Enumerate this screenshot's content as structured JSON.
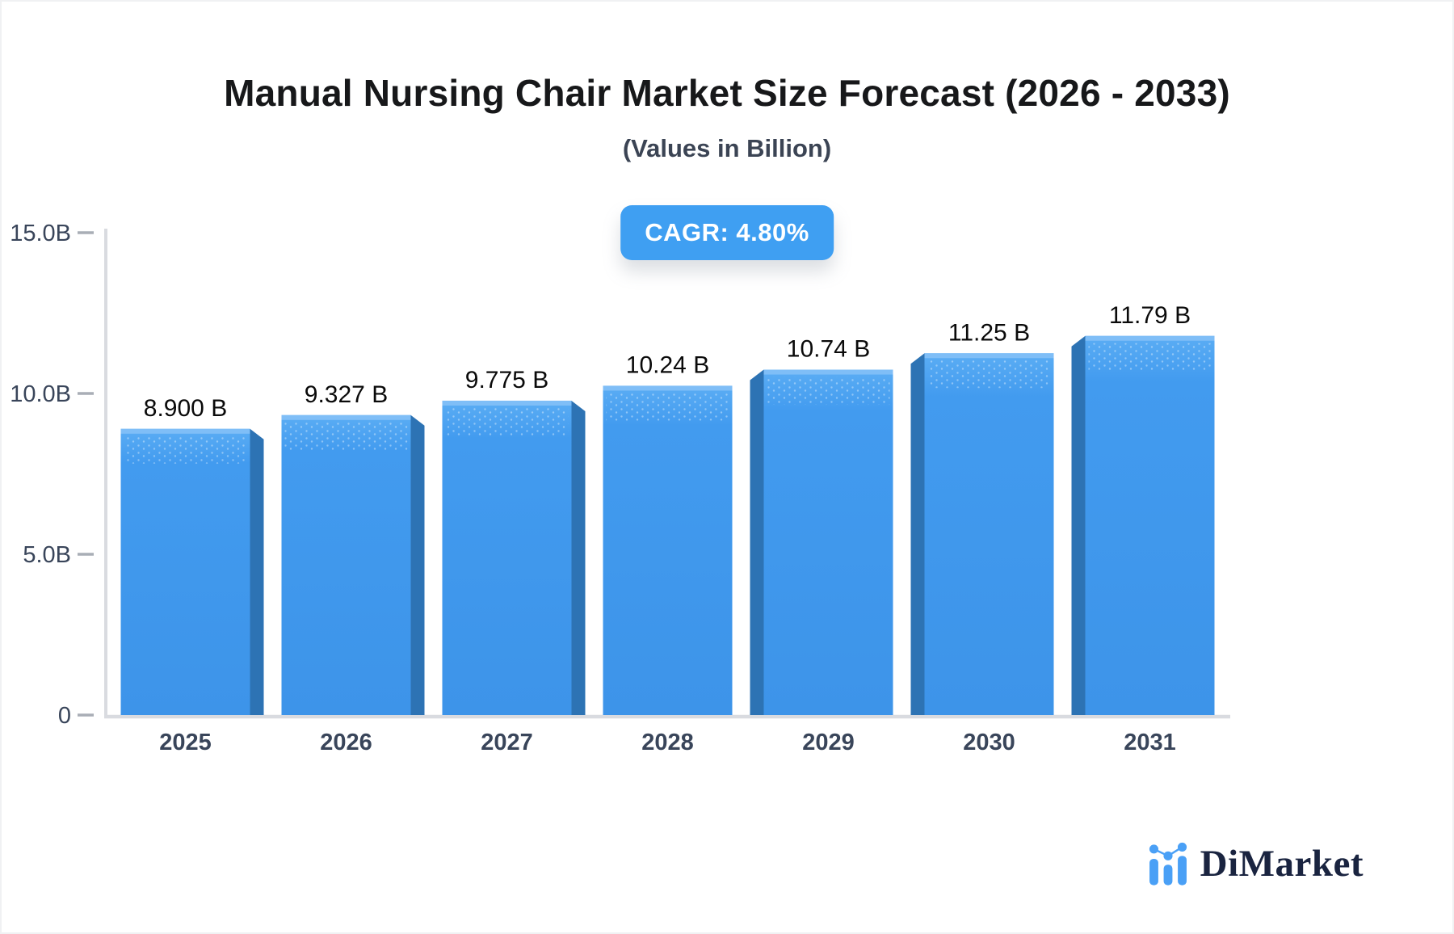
{
  "page": {
    "title": "Manual Nursing Chair Market Size Forecast (2026 - 2033)",
    "subtitle": "(Values in Billion)",
    "cagr_badge": "CAGR: 4.80%"
  },
  "chart_data": {
    "type": "bar",
    "title": "Manual Nursing Chair Market Size Forecast (2026 - 2033)",
    "subtitle": "(Values in Billion)",
    "annotation": "CAGR: 4.80%",
    "categories": [
      "2025",
      "2026",
      "2027",
      "2028",
      "2029",
      "2030",
      "2031"
    ],
    "values": [
      8.9,
      9.327,
      9.775,
      10.24,
      10.74,
      11.25,
      11.79
    ],
    "value_labels": [
      "8.900 B",
      "9.327 B",
      "9.775 B",
      "10.24 B",
      "10.74 B",
      "11.25 B",
      "11.79 B"
    ],
    "xlabel": "",
    "ylabel": "",
    "ylim": [
      0,
      15
    ],
    "y_ticks": [
      {
        "label": "15.0B",
        "value": 15
      },
      {
        "label": "10.0B",
        "value": 10
      },
      {
        "label": "5.0B",
        "value": 5
      },
      {
        "label": "0",
        "value": 0
      }
    ],
    "grid": false,
    "legend": false,
    "style": "3d-bars, perspective toward center: left bars shaded on right face, right bars shaded on left face"
  },
  "branding": {
    "logo_text": "DiMarket",
    "logo_icon": "bar-chart-logo-icon"
  },
  "colors": {
    "bar_fill_top": "#5badf4",
    "bar_fill": "#429bef",
    "bar_fill_bottom": "#3d94e9",
    "bar_side": "#2d73b4",
    "bar_top_strip": "#7fbef7",
    "badge_bg": "#3f9ff2",
    "badge_text": "#ffffff",
    "axis_line": "#d9dbe0",
    "tick_dash": "#a9aeb6",
    "tick_text": "#39455a",
    "value_text": "#0a0a0a",
    "title_text": "#17181a",
    "subtitle_text": "#3b4454",
    "logo_text_color": "#1a2440",
    "logo_blue": "#4aa0f6"
  }
}
